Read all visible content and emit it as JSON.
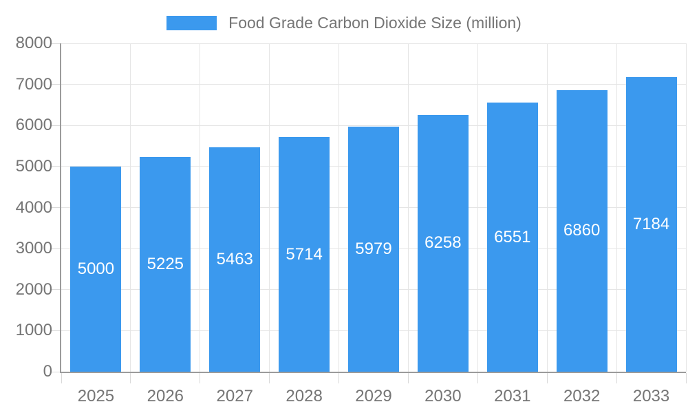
{
  "legend": {
    "label": "Food Grade Carbon Dioxide Size (million)"
  },
  "colors": {
    "bar": "#3b99ee",
    "value_label": "#ffffff",
    "axis_label": "#757575",
    "gridline": "#e5e5e5",
    "axis_line": "#9b9b9b"
  },
  "chart_data": {
    "type": "bar",
    "title": "Food Grade Carbon Dioxide Size (million)",
    "categories": [
      "2025",
      "2026",
      "2027",
      "2028",
      "2029",
      "2030",
      "2031",
      "2032",
      "2033"
    ],
    "values": [
      5000,
      5225,
      5463,
      5714,
      5979,
      6258,
      6551,
      6860,
      7184
    ],
    "series_name": "Food Grade Carbon Dioxide Size (million)",
    "xlabel": "",
    "ylabel": "",
    "ylim": [
      0,
      8000
    ],
    "ytick_step": 1000,
    "grid": true,
    "legend_position": "top",
    "value_labels": "centered-in-bar"
  }
}
